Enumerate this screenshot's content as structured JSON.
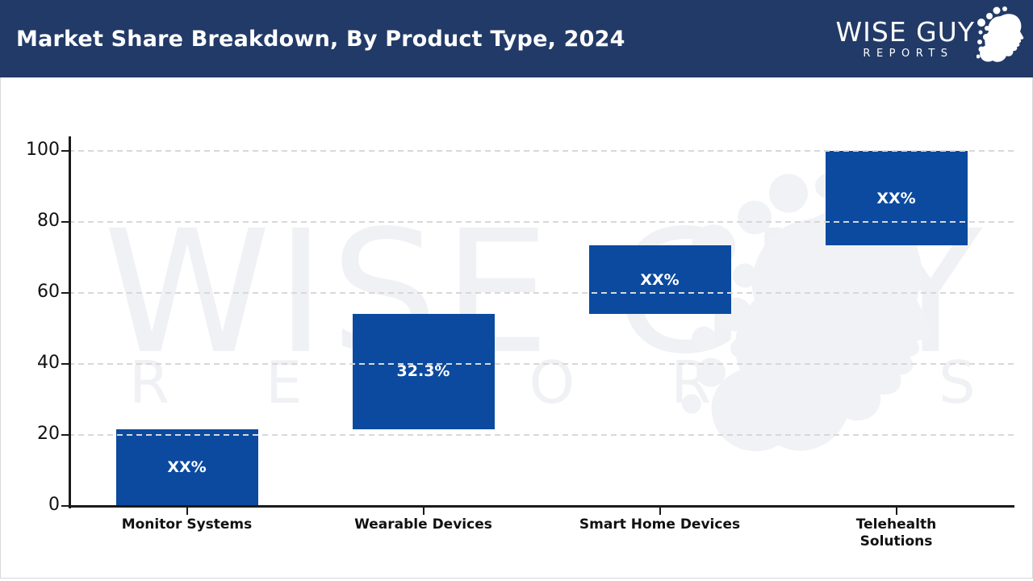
{
  "header": {
    "title": "Market Share Breakdown, By Product Type, 2024",
    "logo": {
      "line1": "WISE GUY",
      "line2": "REPORTS"
    }
  },
  "watermark": {
    "line1": "WISE GUY",
    "line2": "R E P O R T S"
  },
  "chart_data": {
    "type": "bar",
    "subtype": "waterfall",
    "title": "Market Share Breakdown, By Product Type, 2024",
    "categories": [
      "Monitor Systems",
      "Wearable Devices",
      "Smart Home Devices",
      "Telehealth Solutions"
    ],
    "segments": [
      {
        "category": "Monitor Systems",
        "start": 0,
        "end": 21.7,
        "label": "XX%"
      },
      {
        "category": "Wearable Devices",
        "start": 21.7,
        "end": 54.0,
        "label": "32.3%"
      },
      {
        "category": "Smart Home Devices",
        "start": 54.0,
        "end": 73.3,
        "label": "XX%"
      },
      {
        "category": "Telehealth Solutions",
        "start": 73.3,
        "end": 100,
        "label": "XX%"
      }
    ],
    "yticks": [
      0,
      20,
      40,
      60,
      80,
      100
    ],
    "ylim": [
      0,
      104
    ],
    "xlabel": "",
    "ylabel": "",
    "grid": true,
    "legend": false,
    "bar_color": "#0b4a9f",
    "bar_label_color": "#ffffff",
    "gridline_color": "#d8d8d8",
    "axis_color": "#1a1a1a",
    "header_color": "#223a67",
    "watermark_color": "#f0f1f4"
  }
}
